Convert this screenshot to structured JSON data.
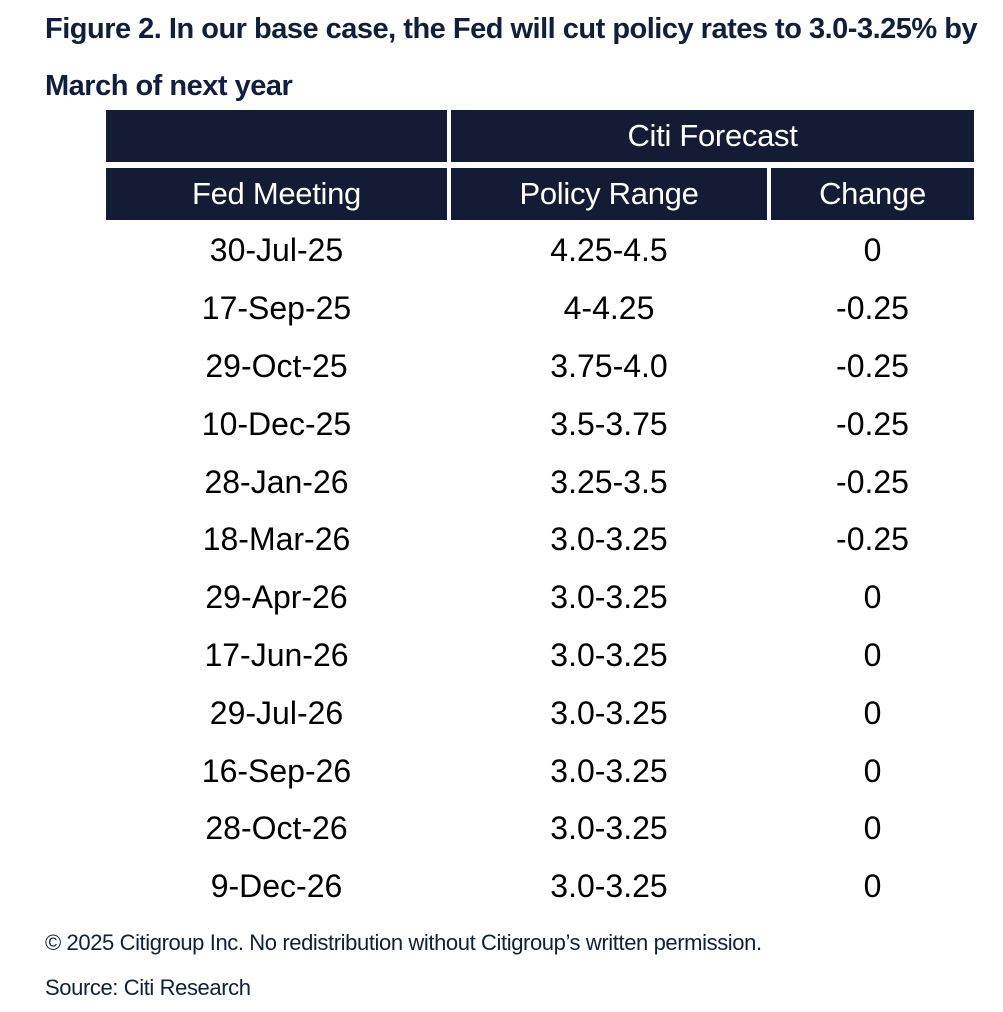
{
  "figure": {
    "title": "Figure 2. In our base case, the Fed will cut policy rates to 3.0-3.25% by March of next year"
  },
  "table": {
    "group_header": "Citi Forecast",
    "columns": [
      "Fed Meeting",
      "Policy Range",
      "Change"
    ],
    "rows": [
      [
        "30-Jul-25",
        "4.25-4.5",
        "0"
      ],
      [
        "17-Sep-25",
        "4-4.25",
        "-0.25"
      ],
      [
        "29-Oct-25",
        "3.75-4.0",
        "-0.25"
      ],
      [
        "10-Dec-25",
        "3.5-3.75",
        "-0.25"
      ],
      [
        "28-Jan-26",
        "3.25-3.5",
        "-0.25"
      ],
      [
        "18-Mar-26",
        "3.0-3.25",
        "-0.25"
      ],
      [
        "29-Apr-26",
        "3.0-3.25",
        "0"
      ],
      [
        "17-Jun-26",
        "3.0-3.25",
        "0"
      ],
      [
        "29-Jul-26",
        "3.0-3.25",
        "0"
      ],
      [
        "16-Sep-26",
        "3.0-3.25",
        "0"
      ],
      [
        "28-Oct-26",
        "3.0-3.25",
        "0"
      ],
      [
        "9-Dec-26",
        "3.0-3.25",
        "0"
      ]
    ]
  },
  "footer": {
    "copyright": "© 2025 Citigroup Inc. No redistribution without Citigroup’s written permission.",
    "source": "Source: Citi Research"
  },
  "colors": {
    "title_text": "#101f3d",
    "header_cell_bg": "#131c34",
    "header_cell_text": "#ffffff",
    "data_text": "#000000"
  }
}
